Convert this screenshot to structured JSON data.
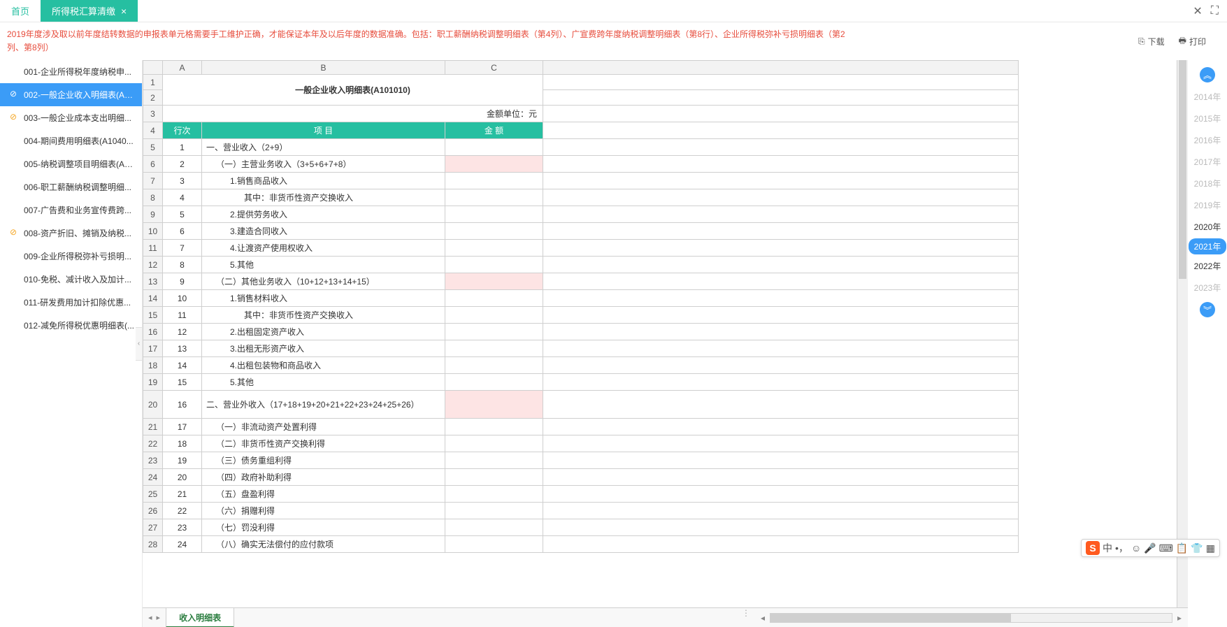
{
  "tabs": {
    "home": "首页",
    "active": "所得税汇算清缴"
  },
  "notice": "2019年度涉及取以前年度结转数据的申报表单元格需要手工维护正确，才能保证本年及以后年度的数据准确。包括：职工薪酬纳税调整明细表（第4列）、广宣费跨年度纳税调整明细表（第8行）、企业所得税弥补亏损明细表（第2列、第8列）",
  "actions": {
    "download": "下载",
    "print": "打印"
  },
  "sidebar": [
    {
      "label": "001-企业所得税年度纳税申...",
      "warn": false
    },
    {
      "label": "002-一般企业收入明细表(A1...",
      "warn": true,
      "selected": true
    },
    {
      "label": "003-一般企业成本支出明细...",
      "warn": true
    },
    {
      "label": "004-期间费用明细表(A1040...",
      "warn": false
    },
    {
      "label": "005-纳税调整项目明细表(A1...",
      "warn": false
    },
    {
      "label": "006-职工薪酬纳税调整明细...",
      "warn": false
    },
    {
      "label": "007-广告费和业务宣传费跨...",
      "warn": false
    },
    {
      "label": "008-资产折旧、摊销及纳税...",
      "warn": true
    },
    {
      "label": "009-企业所得税弥补亏损明...",
      "warn": false
    },
    {
      "label": "010-免税、减计收入及加计...",
      "warn": false
    },
    {
      "label": "011-研发费用加计扣除优惠...",
      "warn": false
    },
    {
      "label": "012-减免所得税优惠明细表(...",
      "warn": false
    }
  ],
  "sheet": {
    "columns": [
      "A",
      "B",
      "C"
    ],
    "title": "一般企业收入明细表(A101010)",
    "unit_label": "金额单位：元",
    "headers": {
      "rownum": "行次",
      "item": "项  目",
      "amount": "金  额"
    },
    "rows": [
      {
        "r": 5,
        "n": "1",
        "txt": "一、营业收入（2+9）",
        "indent": 0,
        "pink": false
      },
      {
        "r": 6,
        "n": "2",
        "txt": "（一）主营业务收入（3+5+6+7+8）",
        "indent": 1,
        "pink": true
      },
      {
        "r": 7,
        "n": "3",
        "txt": "1.销售商品收入",
        "indent": 2,
        "pink": false
      },
      {
        "r": 8,
        "n": "4",
        "txt": "其中：非货币性资产交换收入",
        "indent": 3,
        "pink": false
      },
      {
        "r": 9,
        "n": "5",
        "txt": "2.提供劳务收入",
        "indent": 2,
        "pink": false
      },
      {
        "r": 10,
        "n": "6",
        "txt": "3.建造合同收入",
        "indent": 2,
        "pink": false
      },
      {
        "r": 11,
        "n": "7",
        "txt": "4.让渡资产使用权收入",
        "indent": 2,
        "pink": false
      },
      {
        "r": 12,
        "n": "8",
        "txt": "5.其他",
        "indent": 2,
        "pink": false
      },
      {
        "r": 13,
        "n": "9",
        "txt": "（二）其他业务收入（10+12+13+14+15）",
        "indent": 1,
        "pink": true
      },
      {
        "r": 14,
        "n": "10",
        "txt": "1.销售材料收入",
        "indent": 2,
        "pink": false
      },
      {
        "r": 15,
        "n": "11",
        "txt": "其中：非货币性资产交换收入",
        "indent": 3,
        "pink": false
      },
      {
        "r": 16,
        "n": "12",
        "txt": "2.出租固定资产收入",
        "indent": 2,
        "pink": false
      },
      {
        "r": 17,
        "n": "13",
        "txt": "3.出租无形资产收入",
        "indent": 2,
        "pink": false
      },
      {
        "r": 18,
        "n": "14",
        "txt": "4.出租包装物和商品收入",
        "indent": 2,
        "pink": false
      },
      {
        "r": 19,
        "n": "15",
        "txt": "5.其他",
        "indent": 2,
        "pink": false
      },
      {
        "r": 20,
        "n": "16",
        "txt": "二、营业外收入（17+18+19+20+21+22+23+24+25+26）",
        "indent": 0,
        "pink": true,
        "tall": true
      },
      {
        "r": 21,
        "n": "17",
        "txt": "（一）非流动资产处置利得",
        "indent": 1,
        "pink": false
      },
      {
        "r": 22,
        "n": "18",
        "txt": "（二）非货币性资产交换利得",
        "indent": 1,
        "pink": false
      },
      {
        "r": 23,
        "n": "19",
        "txt": "（三）债务重组利得",
        "indent": 1,
        "pink": false
      },
      {
        "r": 24,
        "n": "20",
        "txt": "（四）政府补助利得",
        "indent": 1,
        "pink": false
      },
      {
        "r": 25,
        "n": "21",
        "txt": "（五）盘盈利得",
        "indent": 1,
        "pink": false
      },
      {
        "r": 26,
        "n": "22",
        "txt": "（六）捐赠利得",
        "indent": 1,
        "pink": false
      },
      {
        "r": 27,
        "n": "23",
        "txt": "（七）罚没利得",
        "indent": 1,
        "pink": false
      },
      {
        "r": 28,
        "n": "24",
        "txt": "（八）确实无法偿付的应付款项",
        "indent": 1,
        "pink": false
      }
    ],
    "tab_name": "收入明细表"
  },
  "years": {
    "list": [
      "2014年",
      "2015年",
      "2016年",
      "2017年",
      "2018年",
      "2019年",
      "2020年",
      "2021年",
      "2022年",
      "2023年"
    ],
    "current": "2021年",
    "near": [
      "2020年",
      "2022年"
    ]
  },
  "colors": {
    "accent": "#26bfa1",
    "blue": "#3b9cf7",
    "pink": "#fde4e4",
    "notice": "#e74c3c"
  }
}
